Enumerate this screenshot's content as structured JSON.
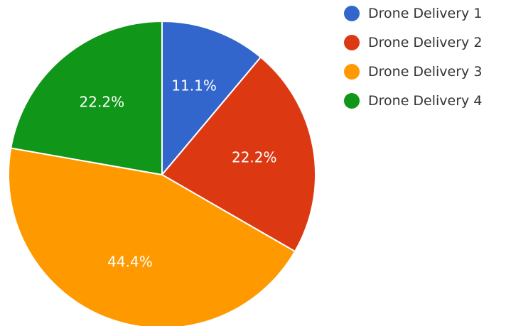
{
  "chart_data": {
    "type": "pie",
    "title": "",
    "legend_position": "top-right",
    "categories": [
      "Drone Delivery 1",
      "Drone Delivery 2",
      "Drone Delivery 3",
      "Drone Delivery 4"
    ],
    "values": [
      11.1,
      22.2,
      44.4,
      22.2
    ],
    "labels": [
      "11.1%",
      "22.2%",
      "44.4%",
      "22.2%"
    ],
    "colors": [
      "#3366cc",
      "#dc3912",
      "#ff9900",
      "#109618"
    ]
  }
}
